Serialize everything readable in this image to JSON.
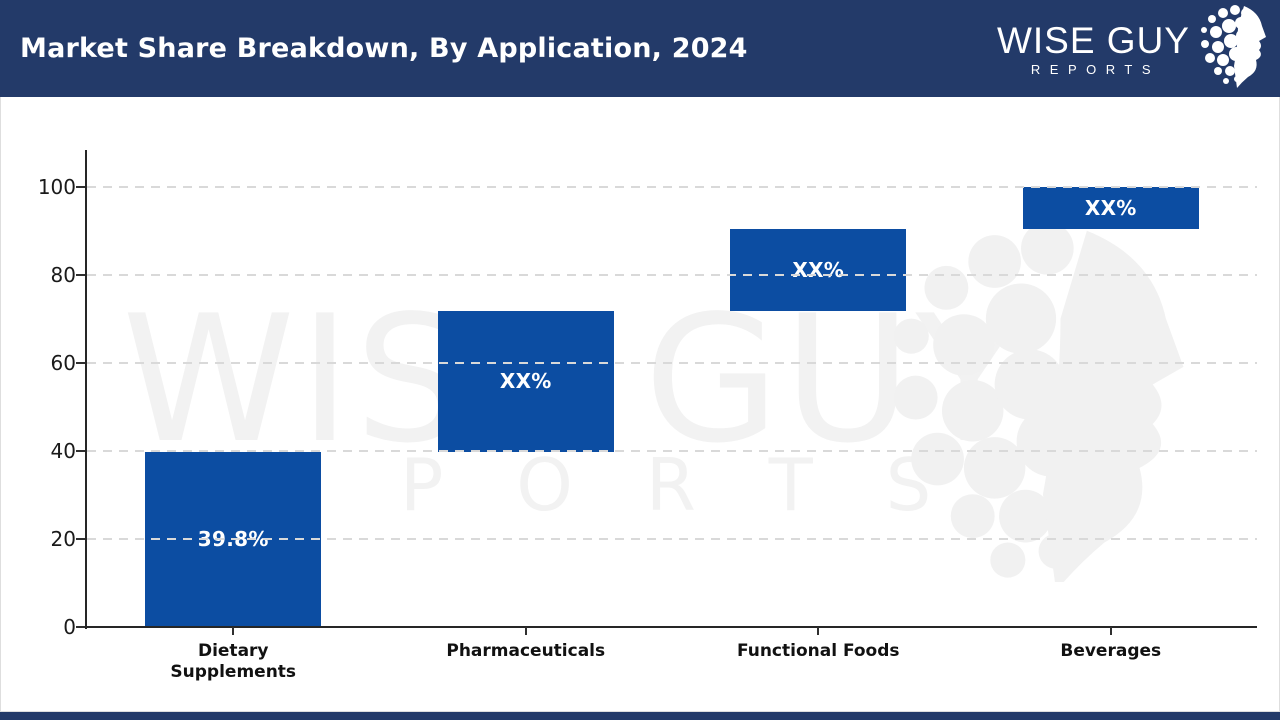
{
  "header": {
    "title": "Market Share Breakdown, By Application, 2024"
  },
  "logo": {
    "name": "WISE GUY",
    "subtitle": "REPORTS"
  },
  "watermark": {
    "line1": "WISE GUY",
    "line2": "P O R T S"
  },
  "chart_data": {
    "type": "bar",
    "subtype": "floating-segment-waterfall",
    "title": "Market Share Breakdown, By Application, 2024",
    "categories": [
      "Dietary Supplements",
      "Pharmaceuticals",
      "Functional Foods",
      "Beverages"
    ],
    "x_tick_lines": [
      [
        "Dietary",
        "Supplements"
      ],
      [
        "Pharmaceuticals"
      ],
      [
        "Functional Foods"
      ],
      [
        "Beverages"
      ]
    ],
    "bars": [
      {
        "category": "Dietary Supplements",
        "start": 0,
        "end": 39.8,
        "label": "39.8%"
      },
      {
        "category": "Pharmaceuticals",
        "start": 39.8,
        "end": 71.8,
        "label": "XX%"
      },
      {
        "category": "Functional Foods",
        "start": 71.8,
        "end": 90.5,
        "label": "XX%"
      },
      {
        "category": "Beverages",
        "start": 90.5,
        "end": 100,
        "label": "XX%"
      }
    ],
    "xlabel": "",
    "ylabel": "",
    "ylim": [
      0,
      100
    ],
    "yticks": [
      0,
      20,
      40,
      60,
      80,
      100
    ],
    "grid": "horizontal-dashed",
    "legend": "none",
    "bar_color": "#0c4da2",
    "bar_label_color": "#ffffff"
  },
  "colors": {
    "header_bg": "#233a69",
    "footer_bg": "#233a69",
    "bar": "#0c4da2",
    "gridline": "#d9d9d9",
    "axis": "#262626",
    "tick_text": "#1a1a1a",
    "watermark": "#f2f2f2",
    "background": "#ffffff"
  }
}
